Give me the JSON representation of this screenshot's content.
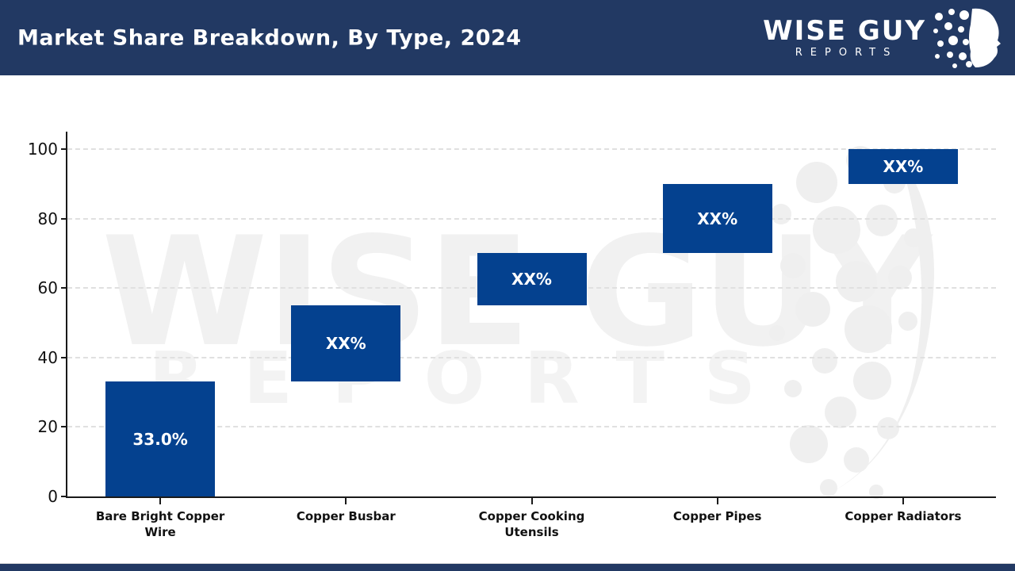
{
  "header": {
    "title": "Market Share Breakdown, By Type, 2024",
    "bg_color": "#223963",
    "logo": {
      "line1": "WISE GUY",
      "line2": "REPORTS"
    }
  },
  "watermark": {
    "line1": "WISE GUY",
    "line2": "REPORTS"
  },
  "footer": {
    "bg_color": "#223963"
  },
  "chart_data": {
    "type": "bar",
    "subtype": "waterfall",
    "title": "Market Share Breakdown, By Type, 2024",
    "categories": [
      "Bare Bright Copper Wire",
      "Copper Busbar",
      "Copper Cooking Utensils",
      "Copper Pipes",
      "Copper Radiators"
    ],
    "bars": [
      {
        "category": "Bare Bright Copper Wire",
        "start": 0,
        "end": 33,
        "label": "33.0%"
      },
      {
        "category": "Copper Busbar",
        "start": 33,
        "end": 55,
        "label": "XX%"
      },
      {
        "category": "Copper Cooking Utensils",
        "start": 55,
        "end": 70,
        "label": "XX%"
      },
      {
        "category": "Copper Pipes",
        "start": 70,
        "end": 90,
        "label": "XX%"
      },
      {
        "category": "Copper Radiators",
        "start": 90,
        "end": 100,
        "label": "XX%"
      }
    ],
    "yticks": [
      0,
      20,
      40,
      60,
      80,
      100
    ],
    "ylim": [
      0,
      105
    ],
    "xlabel": "",
    "ylabel": "",
    "bar_color": "#04418F",
    "label_color": "#ffffff",
    "grid": "horizontal-dashed",
    "legend": "none"
  }
}
